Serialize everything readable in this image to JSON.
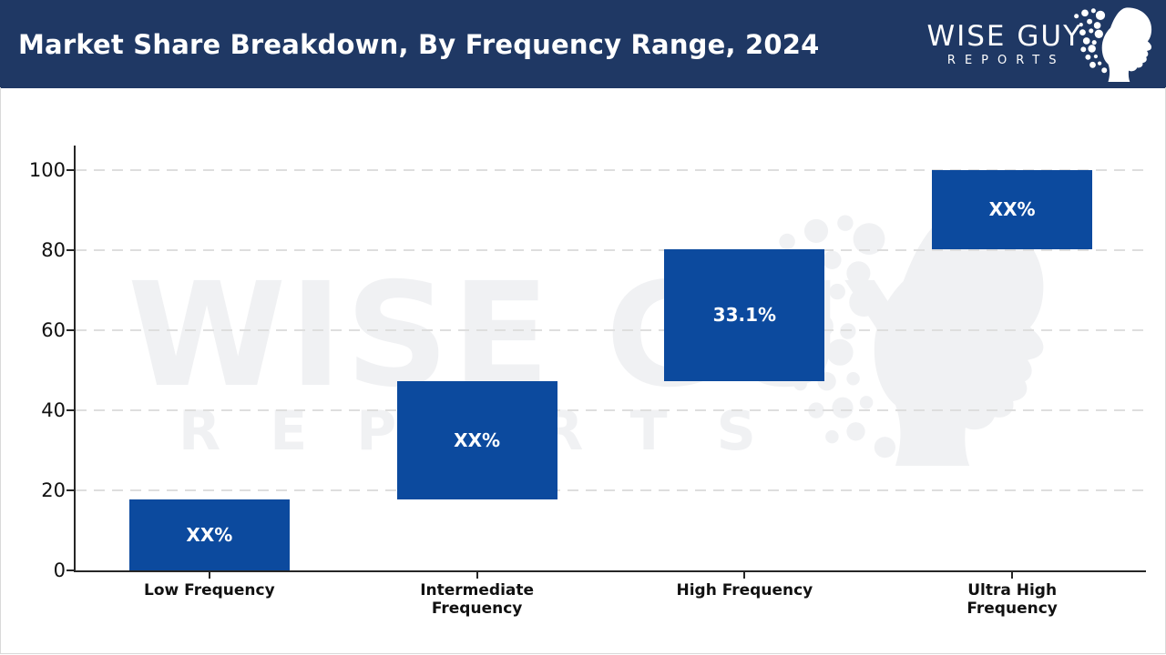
{
  "header": {
    "title": "Market Share Breakdown, By Frequency Range, 2024",
    "logo": {
      "wordmark": "WISE GUY",
      "subtext": "REPORTS"
    }
  },
  "watermark": {
    "wordmark": "WISE GUY",
    "subtext": "REPORTS"
  },
  "colors": {
    "header_bg": "#1f3864",
    "bar": "#0c4a9e",
    "gridline": "#dedede",
    "axis": "#262626",
    "watermark": "#f0f1f3",
    "page_border": "#d9d9d9",
    "title_text": "#ffffff",
    "bar_label_text": "#ffffff"
  },
  "chart_data": {
    "type": "bar",
    "variant": "waterfall",
    "title": "Market Share Breakdown, By Frequency Range, 2024",
    "categories": [
      "Low Frequency",
      "Intermediate Frequency",
      "High Frequency",
      "Ultra High Frequency"
    ],
    "segments": [
      {
        "category": "Low Frequency",
        "start": 0,
        "end": 17.7,
        "label": "XX%"
      },
      {
        "category": "Intermediate Frequency",
        "start": 17.7,
        "end": 47.2,
        "label": "XX%"
      },
      {
        "category": "High Frequency",
        "start": 47.2,
        "end": 80.3,
        "label": "33.1%"
      },
      {
        "category": "Ultra High Frequency",
        "start": 80.3,
        "end": 100,
        "label": "XX%"
      }
    ],
    "y_ticks": [
      0,
      20,
      40,
      60,
      80,
      100
    ],
    "ylim": [
      0,
      106
    ],
    "xlabel": "",
    "ylabel": "",
    "grid": "horizontal-dashed",
    "legend_position": "none",
    "bar_color": "#0c4a9e"
  }
}
